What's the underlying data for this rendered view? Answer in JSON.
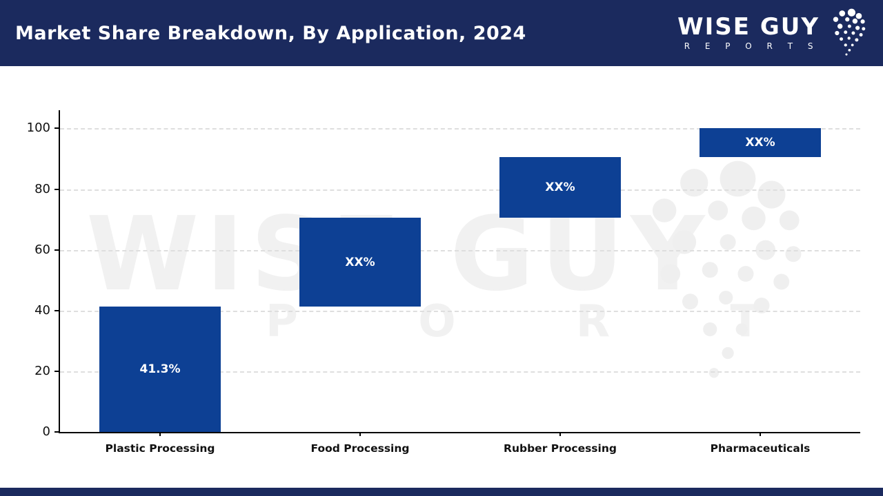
{
  "header": {
    "title": "Market Share Breakdown, By Application, 2024",
    "logo_line1": "WISE GUY",
    "logo_line2": "R E P O R T S"
  },
  "watermark": {
    "line1": "WISE GUY",
    "line2": "P O R T S"
  },
  "colors": {
    "header_bg": "#1b2a5e",
    "bar_fill": "#0d4094",
    "bar_label_text": "#ffffff",
    "gridline": "#dedede",
    "watermark_gray": "#f1f1f1"
  },
  "chart_data": {
    "type": "bar",
    "subtype": "waterfall",
    "title": "Market Share Breakdown, By Application, 2024",
    "xlabel": "",
    "ylabel": "",
    "categories": [
      "Plastic Processing",
      "Food Processing",
      "Rubber Processing",
      "Pharmaceuticals"
    ],
    "segments": [
      {
        "category": "Plastic Processing",
        "label": "41.3%",
        "start": 0,
        "end": 41.3
      },
      {
        "category": "Food Processing",
        "label": "XX%",
        "start": 41.3,
        "end": 70.5
      },
      {
        "category": "Rubber Processing",
        "label": "XX%",
        "start": 70.5,
        "end": 90.5
      },
      {
        "category": "Pharmaceuticals",
        "label": "XX%",
        "start": 90.5,
        "end": 100
      }
    ],
    "values_approx": [
      41.3,
      29.2,
      20.0,
      9.5
    ],
    "yticks": [
      0,
      20,
      40,
      60,
      80,
      100
    ],
    "ylim": [
      0,
      106
    ],
    "grid": "horizontal-dashed",
    "legend": "none"
  }
}
